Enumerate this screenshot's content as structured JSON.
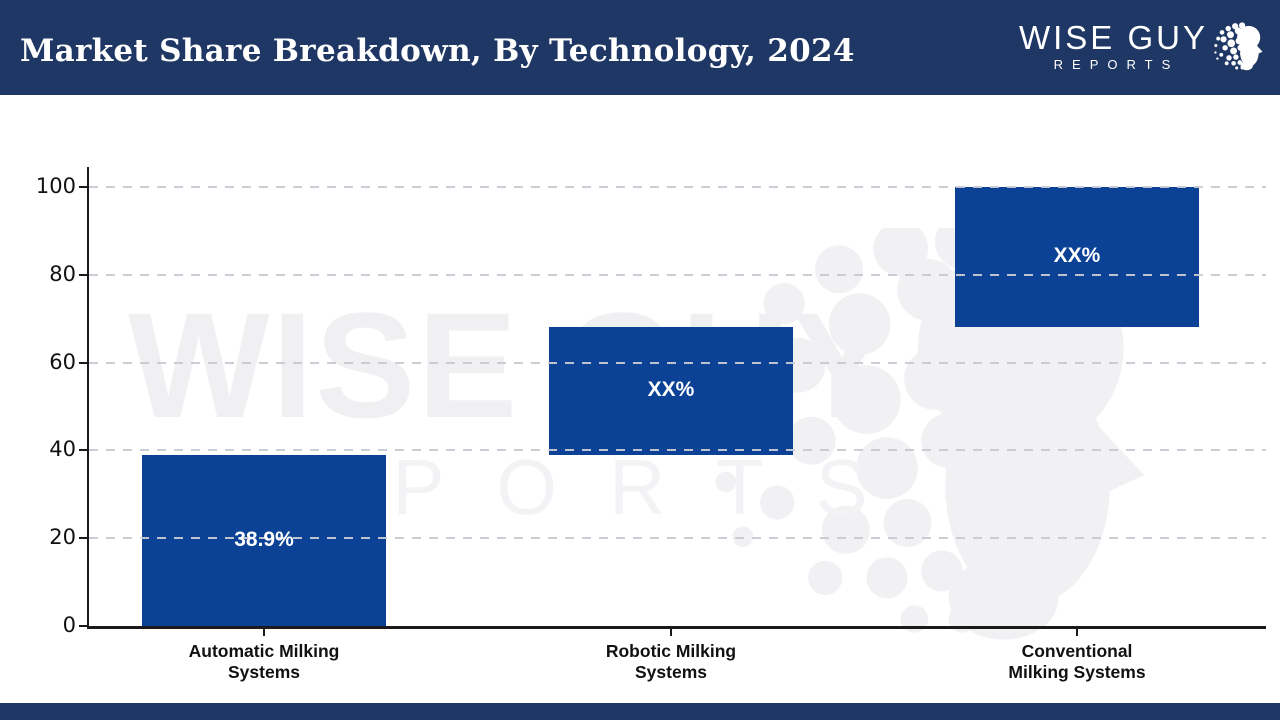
{
  "header": {
    "title": "Market Share Breakdown, By Technology, 2024",
    "logo": {
      "line1": "WISE GUY",
      "line2": "REPORTS"
    }
  },
  "watermark": {
    "line1": "WISE GUY",
    "line2": "REPORTS"
  },
  "chart_data": {
    "type": "bar",
    "subtype": "waterfall",
    "title": "Market Share Breakdown, By Technology, 2024",
    "categories": [
      "Automatic Milking\nSystems",
      "Robotic Milking\nSystems",
      "Conventional\nMilking Systems"
    ],
    "series": [
      {
        "name": "Automatic Milking Systems",
        "start": 0,
        "end": 38.9,
        "label": "38.9%"
      },
      {
        "name": "Robotic Milking Systems",
        "start": 38.9,
        "end": 68,
        "label": "XX%"
      },
      {
        "name": "Conventional Milking Systems",
        "start": 68,
        "end": 100,
        "label": "XX%"
      }
    ],
    "xlabel": "",
    "ylabel": "",
    "ylim": [
      0,
      100
    ],
    "yticks": [
      0,
      20,
      40,
      60,
      80,
      100
    ],
    "grid": "horizontal-dashed",
    "legend": "none",
    "bar_color": "#0B4296",
    "bar_label_color": "#ffffff"
  },
  "colors": {
    "header_bg": "#1F3764",
    "footer_bg": "#1F3764",
    "bar": "#0B4296",
    "axis": "#1a1a1a",
    "gridline": "#d9d9d9",
    "watermark": "#f0f0f3",
    "title_text": "#ffffff"
  }
}
